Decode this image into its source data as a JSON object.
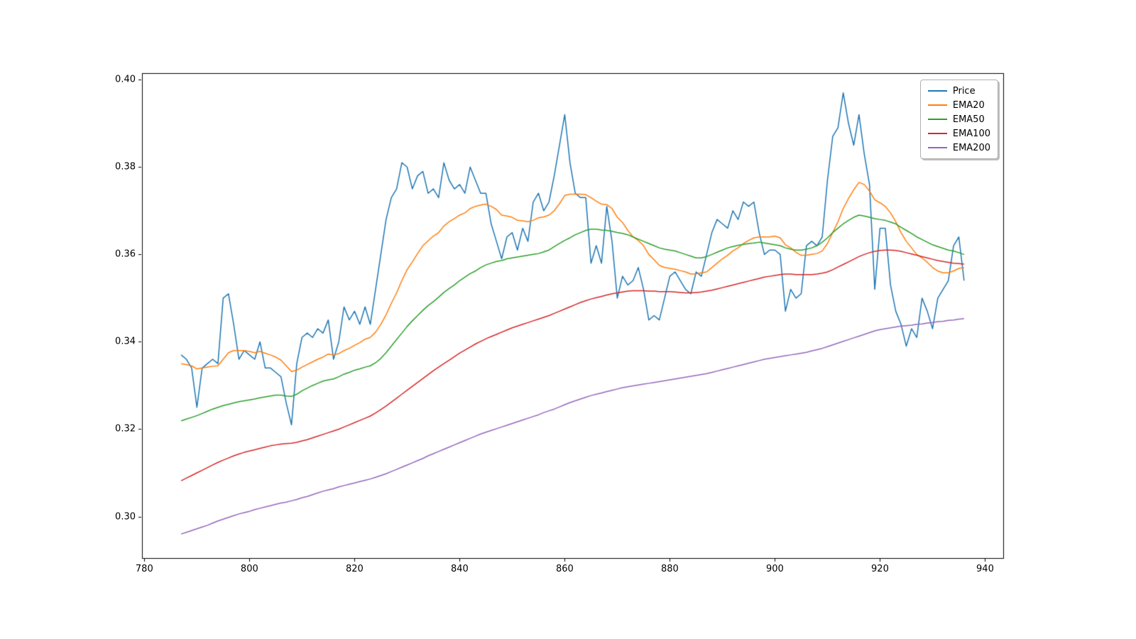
{
  "figure": {
    "background": "#ffffff"
  },
  "chart_data": {
    "type": "line",
    "title": "",
    "xlabel": "",
    "ylabel": "",
    "grid": false,
    "legend_position": "upper right",
    "xlim": [
      779.55,
      943.45
    ],
    "ylim": [
      0.2905,
      0.4015
    ],
    "x_ticks": [
      780,
      800,
      820,
      840,
      860,
      880,
      900,
      920,
      940
    ],
    "x_tick_labels": [
      "780",
      "800",
      "820",
      "840",
      "860",
      "880",
      "900",
      "920",
      "940"
    ],
    "y_ticks": [
      0.3,
      0.32,
      0.34,
      0.36,
      0.38,
      0.4
    ],
    "y_tick_labels": [
      "0.30",
      "0.32",
      "0.34",
      "0.36",
      "0.38",
      "0.40"
    ],
    "x": [
      787,
      788,
      789,
      790,
      791,
      792,
      793,
      794,
      795,
      796,
      797,
      798,
      799,
      800,
      801,
      802,
      803,
      804,
      805,
      806,
      807,
      808,
      809,
      810,
      811,
      812,
      813,
      814,
      815,
      816,
      817,
      818,
      819,
      820,
      821,
      822,
      823,
      824,
      825,
      826,
      827,
      828,
      829,
      830,
      831,
      832,
      833,
      834,
      835,
      836,
      837,
      838,
      839,
      840,
      841,
      842,
      843,
      844,
      845,
      846,
      847,
      848,
      849,
      850,
      851,
      852,
      853,
      854,
      855,
      856,
      857,
      858,
      859,
      860,
      861,
      862,
      863,
      864,
      865,
      866,
      867,
      868,
      869,
      870,
      871,
      872,
      873,
      874,
      875,
      876,
      877,
      878,
      879,
      880,
      881,
      882,
      883,
      884,
      885,
      886,
      887,
      888,
      889,
      890,
      891,
      892,
      893,
      894,
      895,
      896,
      897,
      898,
      899,
      900,
      901,
      902,
      903,
      904,
      905,
      906,
      907,
      908,
      909,
      910,
      911,
      912,
      913,
      914,
      915,
      916,
      917,
      918,
      919,
      920,
      921,
      922,
      923,
      924,
      925,
      926,
      927,
      928,
      929,
      930,
      931,
      932,
      933,
      934,
      935,
      936
    ],
    "series": [
      {
        "name": "Price",
        "color": "#1f77b4",
        "values": [
          0.337,
          0.336,
          0.334,
          0.325,
          0.334,
          0.335,
          0.336,
          0.335,
          0.35,
          0.351,
          0.344,
          0.336,
          0.338,
          0.337,
          0.336,
          0.34,
          0.334,
          0.334,
          0.333,
          0.332,
          0.326,
          0.321,
          0.335,
          0.341,
          0.342,
          0.341,
          0.343,
          0.342,
          0.345,
          0.336,
          0.34,
          0.348,
          0.345,
          0.347,
          0.344,
          0.348,
          0.344,
          0.352,
          0.36,
          0.368,
          0.373,
          0.375,
          0.381,
          0.38,
          0.375,
          0.378,
          0.379,
          0.374,
          0.375,
          0.373,
          0.381,
          0.377,
          0.375,
          0.376,
          0.374,
          0.38,
          0.377,
          0.374,
          0.374,
          0.367,
          0.363,
          0.359,
          0.364,
          0.365,
          0.361,
          0.366,
          0.363,
          0.372,
          0.374,
          0.37,
          0.372,
          0.378,
          0.385,
          0.392,
          0.381,
          0.374,
          0.373,
          0.373,
          0.358,
          0.362,
          0.358,
          0.371,
          0.363,
          0.35,
          0.355,
          0.353,
          0.354,
          0.357,
          0.352,
          0.345,
          0.346,
          0.345,
          0.35,
          0.355,
          0.356,
          0.354,
          0.352,
          0.351,
          0.356,
          0.355,
          0.36,
          0.365,
          0.368,
          0.367,
          0.366,
          0.37,
          0.368,
          0.372,
          0.371,
          0.372,
          0.365,
          0.36,
          0.361,
          0.361,
          0.36,
          0.347,
          0.352,
          0.35,
          0.351,
          0.362,
          0.363,
          0.362,
          0.364,
          0.377,
          0.387,
          0.389,
          0.397,
          0.39,
          0.385,
          0.392,
          0.383,
          0.376,
          0.352,
          0.366,
          0.366,
          0.353,
          0.347,
          0.344,
          0.339,
          0.343,
          0.341,
          0.35,
          0.347,
          0.343,
          0.35,
          0.352,
          0.354,
          0.362,
          0.364,
          0.354
        ]
      },
      {
        "name": "EMA20",
        "color": "#ff7f0e",
        "values": [
          0.335,
          0.3348,
          0.3345,
          0.3338,
          0.334,
          0.3342,
          0.3344,
          0.3345,
          0.336,
          0.3375,
          0.338,
          0.338,
          0.338,
          0.3378,
          0.3375,
          0.3378,
          0.3374,
          0.337,
          0.3365,
          0.3358,
          0.3345,
          0.3332,
          0.3335,
          0.3342,
          0.3348,
          0.3354,
          0.336,
          0.3365,
          0.3372,
          0.337,
          0.3373,
          0.338,
          0.3385,
          0.3392,
          0.3398,
          0.3406,
          0.341,
          0.3422,
          0.344,
          0.3462,
          0.3488,
          0.3512,
          0.354,
          0.3565,
          0.3583,
          0.3602,
          0.362,
          0.3631,
          0.3642,
          0.365,
          0.3665,
          0.3675,
          0.3682,
          0.369,
          0.3695,
          0.3705,
          0.371,
          0.3713,
          0.3715,
          0.371,
          0.3703,
          0.369,
          0.3688,
          0.3685,
          0.3678,
          0.3677,
          0.3675,
          0.3678,
          0.3684,
          0.3686,
          0.369,
          0.37,
          0.3716,
          0.3735,
          0.3738,
          0.3738,
          0.3738,
          0.3737,
          0.373,
          0.3722,
          0.3715,
          0.3714,
          0.3705,
          0.3685,
          0.3673,
          0.3655,
          0.364,
          0.3632,
          0.362,
          0.36,
          0.3588,
          0.3575,
          0.357,
          0.3568,
          0.3566,
          0.3563,
          0.356,
          0.3555,
          0.3556,
          0.3558,
          0.356,
          0.357,
          0.358,
          0.359,
          0.3598,
          0.3608,
          0.3615,
          0.3625,
          0.3632,
          0.3638,
          0.364,
          0.364,
          0.364,
          0.3642,
          0.3638,
          0.3622,
          0.3615,
          0.3605,
          0.3598,
          0.3598,
          0.36,
          0.3602,
          0.3608,
          0.3625,
          0.365,
          0.3675,
          0.3705,
          0.3728,
          0.3748,
          0.3765,
          0.376,
          0.3745,
          0.3725,
          0.3718,
          0.371,
          0.3695,
          0.3675,
          0.365,
          0.363,
          0.3615,
          0.36,
          0.3592,
          0.3582,
          0.357,
          0.3562,
          0.3558,
          0.3558,
          0.3562,
          0.3568,
          0.357
        ]
      },
      {
        "name": "EMA50",
        "color": "#2ca02c",
        "values": [
          0.3219,
          0.3223,
          0.3227,
          0.3231,
          0.3236,
          0.3241,
          0.3246,
          0.325,
          0.3254,
          0.3257,
          0.326,
          0.3263,
          0.3265,
          0.3267,
          0.3269,
          0.3272,
          0.3274,
          0.3276,
          0.3278,
          0.3278,
          0.3276,
          0.3275,
          0.328,
          0.3288,
          0.3294,
          0.33,
          0.3305,
          0.331,
          0.3313,
          0.3315,
          0.332,
          0.3326,
          0.333,
          0.3335,
          0.3338,
          0.3342,
          0.3345,
          0.3352,
          0.3362,
          0.3375,
          0.339,
          0.3405,
          0.342,
          0.3435,
          0.3448,
          0.346,
          0.3472,
          0.3483,
          0.3492,
          0.3502,
          0.3513,
          0.3522,
          0.353,
          0.354,
          0.3548,
          0.3556,
          0.3562,
          0.357,
          0.3576,
          0.358,
          0.3584,
          0.3586,
          0.359,
          0.3592,
          0.3594,
          0.3596,
          0.3598,
          0.36,
          0.3602,
          0.3606,
          0.361,
          0.3618,
          0.3625,
          0.3632,
          0.3638,
          0.3645,
          0.365,
          0.3655,
          0.3658,
          0.3658,
          0.3656,
          0.3655,
          0.3653,
          0.365,
          0.3648,
          0.3645,
          0.364,
          0.3635,
          0.363,
          0.3625,
          0.362,
          0.3615,
          0.3612,
          0.361,
          0.3608,
          0.3604,
          0.36,
          0.3596,
          0.3592,
          0.3592,
          0.3595,
          0.36,
          0.3605,
          0.361,
          0.3615,
          0.3618,
          0.3621,
          0.3623,
          0.3625,
          0.3626,
          0.3628,
          0.3626,
          0.3624,
          0.3622,
          0.362,
          0.3615,
          0.3612,
          0.361,
          0.361,
          0.3612,
          0.3615,
          0.362,
          0.3628,
          0.3638,
          0.365,
          0.366,
          0.367,
          0.3678,
          0.3685,
          0.369,
          0.3688,
          0.3685,
          0.3682,
          0.368,
          0.3678,
          0.3674,
          0.367,
          0.3662,
          0.3655,
          0.3648,
          0.364,
          0.3634,
          0.3628,
          0.3622,
          0.3618,
          0.3614,
          0.361,
          0.3608,
          0.3604,
          0.36
        ]
      },
      {
        "name": "EMA100",
        "color": "#d62728",
        "values": [
          0.3082,
          0.3088,
          0.3094,
          0.31,
          0.3106,
          0.3112,
          0.3118,
          0.3124,
          0.3129,
          0.3134,
          0.3139,
          0.3143,
          0.3147,
          0.315,
          0.3153,
          0.3156,
          0.3159,
          0.3162,
          0.3164,
          0.3166,
          0.3167,
          0.3168,
          0.317,
          0.3173,
          0.3176,
          0.318,
          0.3184,
          0.3188,
          0.3192,
          0.3196,
          0.32,
          0.3205,
          0.321,
          0.3215,
          0.322,
          0.3225,
          0.323,
          0.3237,
          0.3245,
          0.3253,
          0.3262,
          0.3271,
          0.328,
          0.3289,
          0.3298,
          0.3307,
          0.3316,
          0.3325,
          0.3334,
          0.3342,
          0.335,
          0.3358,
          0.3366,
          0.3374,
          0.3381,
          0.3388,
          0.3395,
          0.3401,
          0.3407,
          0.3412,
          0.3417,
          0.3422,
          0.3427,
          0.3432,
          0.3436,
          0.344,
          0.3444,
          0.3448,
          0.3452,
          0.3456,
          0.346,
          0.3465,
          0.347,
          0.3475,
          0.348,
          0.3485,
          0.349,
          0.3494,
          0.3498,
          0.3501,
          0.3504,
          0.3507,
          0.351,
          0.3512,
          0.3514,
          0.3516,
          0.3517,
          0.3517,
          0.3517,
          0.3516,
          0.3516,
          0.3515,
          0.3515,
          0.3515,
          0.3514,
          0.3513,
          0.3512,
          0.3512,
          0.3513,
          0.3514,
          0.3516,
          0.3518,
          0.3521,
          0.3524,
          0.3527,
          0.353,
          0.3533,
          0.3536,
          0.3539,
          0.3542,
          0.3545,
          0.3548,
          0.355,
          0.3552,
          0.3554,
          0.3555,
          0.3555,
          0.3554,
          0.3554,
          0.3554,
          0.3554,
          0.3555,
          0.3557,
          0.356,
          0.3565,
          0.3571,
          0.3577,
          0.3583,
          0.3589,
          0.3595,
          0.36,
          0.3604,
          0.3607,
          0.3609,
          0.361,
          0.361,
          0.3609,
          0.3607,
          0.3604,
          0.3601,
          0.3598,
          0.3595,
          0.3592,
          0.3589,
          0.3586,
          0.3584,
          0.3582,
          0.358,
          0.3579,
          0.3578
        ]
      },
      {
        "name": "EMA200",
        "color": "#9467bd",
        "values": [
          0.296,
          0.2964,
          0.2968,
          0.2972,
          0.2976,
          0.298,
          0.2985,
          0.299,
          0.2994,
          0.2998,
          0.3002,
          0.3006,
          0.3009,
          0.3012,
          0.3016,
          0.3019,
          0.3022,
          0.3025,
          0.3028,
          0.3031,
          0.3033,
          0.3036,
          0.3039,
          0.3043,
          0.3046,
          0.305,
          0.3054,
          0.3058,
          0.3061,
          0.3064,
          0.3068,
          0.3071,
          0.3074,
          0.3077,
          0.308,
          0.3083,
          0.3086,
          0.309,
          0.3094,
          0.3098,
          0.3103,
          0.3108,
          0.3113,
          0.3118,
          0.3123,
          0.3128,
          0.3133,
          0.3139,
          0.3144,
          0.3149,
          0.3154,
          0.3159,
          0.3164,
          0.3169,
          0.3174,
          0.3179,
          0.3184,
          0.3189,
          0.3193,
          0.3197,
          0.3201,
          0.3205,
          0.3209,
          0.3213,
          0.3217,
          0.3221,
          0.3225,
          0.3229,
          0.3233,
          0.3238,
          0.3242,
          0.3246,
          0.3251,
          0.3256,
          0.3261,
          0.3265,
          0.3269,
          0.3273,
          0.3277,
          0.328,
          0.3283,
          0.3286,
          0.3289,
          0.3292,
          0.3295,
          0.3297,
          0.3299,
          0.3301,
          0.3303,
          0.3305,
          0.3307,
          0.3309,
          0.3311,
          0.3313,
          0.3315,
          0.3317,
          0.3319,
          0.3321,
          0.3323,
          0.3325,
          0.3327,
          0.333,
          0.3333,
          0.3336,
          0.3339,
          0.3342,
          0.3345,
          0.3348,
          0.3351,
          0.3354,
          0.3357,
          0.336,
          0.3362,
          0.3364,
          0.3366,
          0.3368,
          0.337,
          0.3372,
          0.3374,
          0.3376,
          0.3379,
          0.3382,
          0.3385,
          0.3389,
          0.3393,
          0.3397,
          0.3401,
          0.3405,
          0.3409,
          0.3413,
          0.3417,
          0.3421,
          0.3425,
          0.3428,
          0.343,
          0.3432,
          0.3434,
          0.3436,
          0.3437,
          0.3438,
          0.344,
          0.3441,
          0.3443,
          0.3444,
          0.3446,
          0.3447,
          0.3449,
          0.345,
          0.3452,
          0.3453
        ]
      }
    ]
  }
}
